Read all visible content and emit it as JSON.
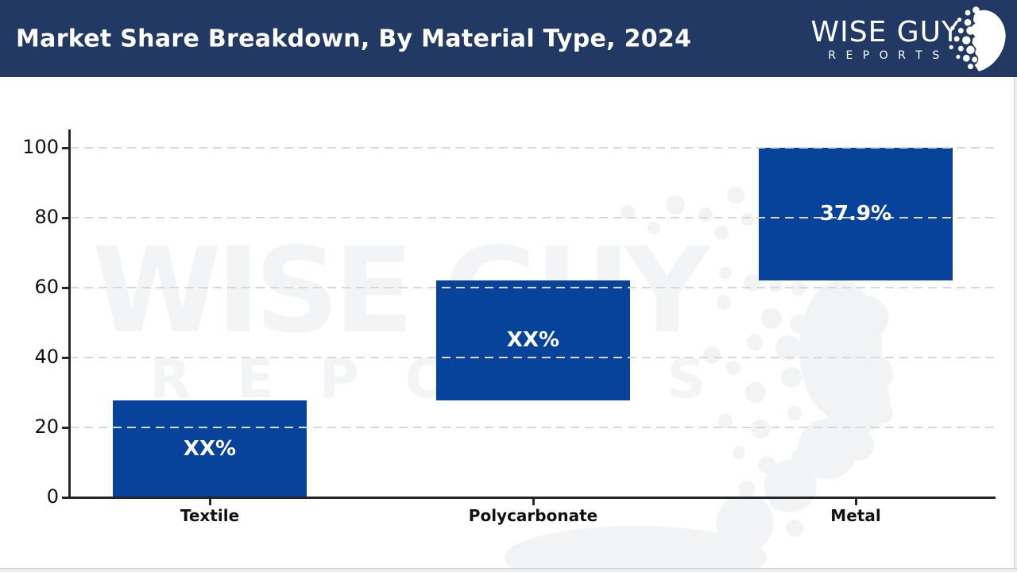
{
  "header": {
    "title": "Market Share Breakdown, By Material Type, 2024",
    "logo": {
      "line1": "WISE GUY",
      "line2": "R E P O R T S"
    }
  },
  "watermark": {
    "line1": "WISE GUY",
    "line2": "R E P O R T S"
  },
  "chart_data": {
    "type": "bar",
    "subtype": "floating-stacked-segments",
    "title": "Market Share Breakdown, By Material Type, 2024",
    "categories": [
      "Textile",
      "Polycarbonate",
      "Metal"
    ],
    "segments": [
      {
        "category": "Textile",
        "from": 0,
        "to": 27.8,
        "value_label": "XX%"
      },
      {
        "category": "Polycarbonate",
        "from": 27.8,
        "to": 62.1,
        "value_label": "XX%"
      },
      {
        "category": "Metal",
        "from": 62.1,
        "to": 100,
        "value_label": "37.9%"
      }
    ],
    "segment_heights_pct": [
      27.8,
      34.3,
      37.9
    ],
    "xlabel": "",
    "ylabel": "",
    "ylim": [
      0,
      105
    ],
    "yticks": [
      0,
      20,
      40,
      60,
      80,
      100
    ],
    "grid": "horizontal-dashed",
    "legend": "none",
    "bar_color": "#08439b",
    "bar_label_color": "#ffffff"
  },
  "colors": {
    "header_bg": "#223a63",
    "bar": "#08439b",
    "axis": "#262626",
    "gridline": "#d9d9d9",
    "tick_text": "#111111",
    "watermark": "#f3f4f6"
  }
}
